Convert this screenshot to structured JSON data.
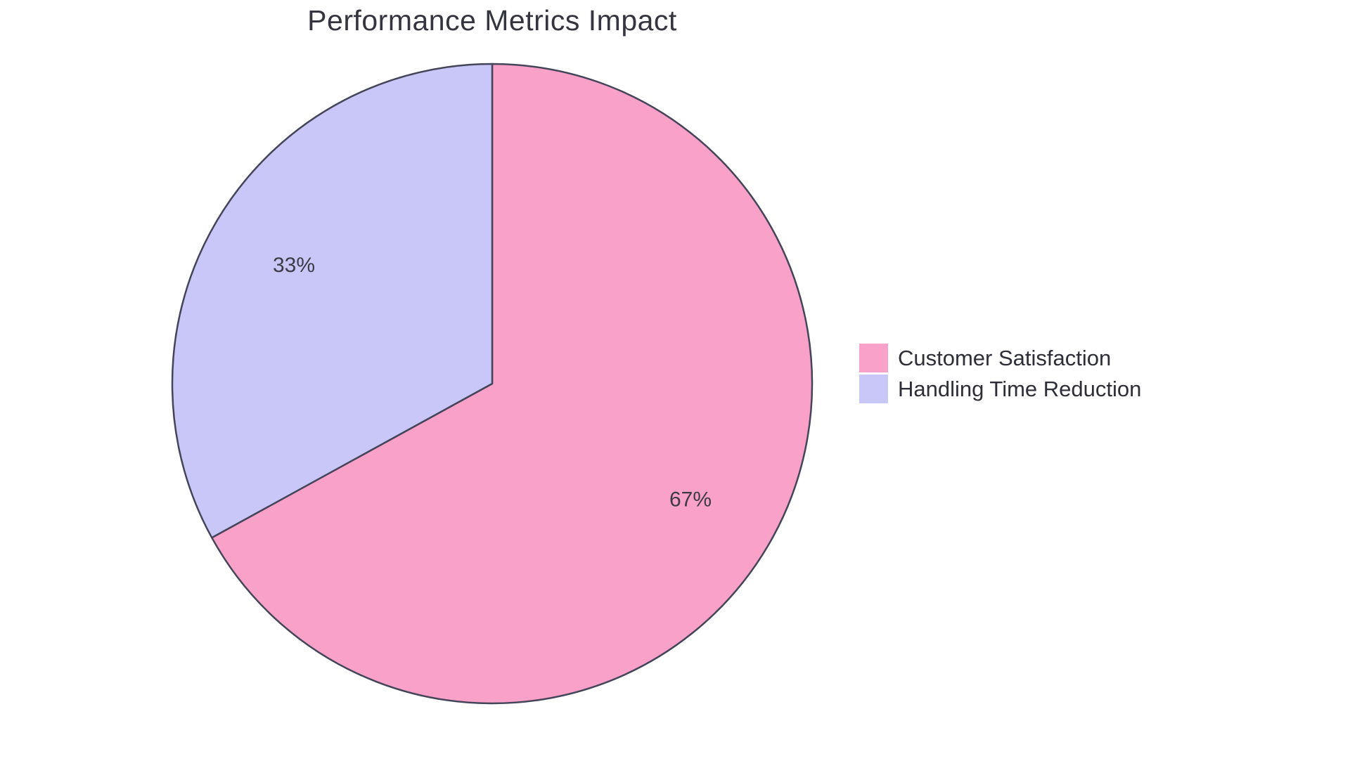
{
  "chart_data": {
    "type": "pie",
    "title": "Performance Metrics Impact",
    "labels": [
      "Customer Satisfaction",
      "Handling Time Reduction"
    ],
    "values": [
      67,
      33
    ],
    "slice_labels": [
      "67%",
      "33%"
    ],
    "colors": [
      "#F9A1C9",
      "#C9C6F8"
    ],
    "outline_color": "#45455A",
    "text_color": "#3C3C46",
    "legend_position": "right",
    "start_angle_deg": 0,
    "direction": "clockwise"
  },
  "legend": {
    "items": [
      {
        "label": "Customer Satisfaction",
        "color": "#F9A1C9"
      },
      {
        "label": "Handling Time Reduction",
        "color": "#C9C6F8"
      }
    ]
  }
}
